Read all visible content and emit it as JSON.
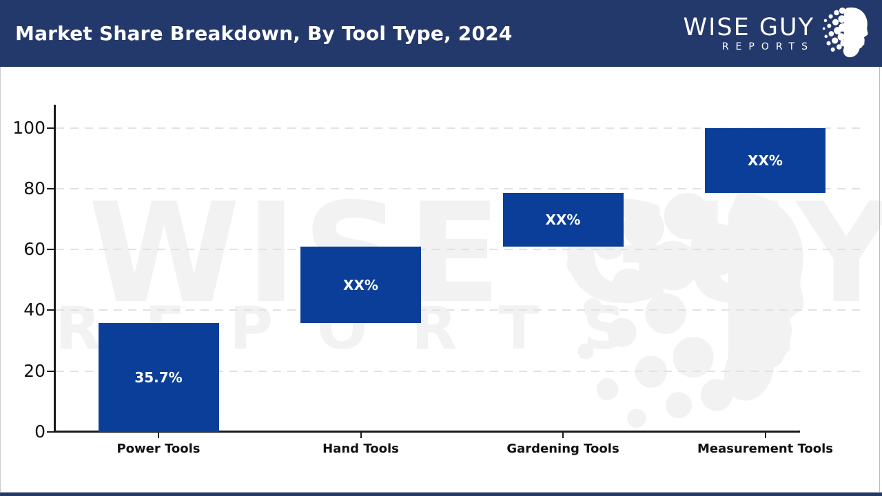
{
  "header": {
    "title": "Market Share Breakdown, By Tool Type, 2024",
    "logo": {
      "line1": "WISE GUY",
      "line2": "REPORTS"
    }
  },
  "watermark": {
    "line1": "WISE GUY",
    "line2": "REPORTS"
  },
  "colors": {
    "header_navy": "#24396b",
    "bar_blue": "#0b3e98",
    "bar_label_white": "#ffffff",
    "grid_gray": "#e2e2e2",
    "watermark_gray": "#f2f2f2"
  },
  "chart_data": {
    "type": "bar",
    "subtype": "waterfall",
    "title": "Market Share Breakdown, By Tool Type, 2024",
    "categories": [
      "Power Tools",
      "Hand Tools",
      "Gardening Tools",
      "Measurement Tools"
    ],
    "segments": [
      {
        "category": "Power Tools",
        "start": 0,
        "end": 35.7,
        "value_label": "35.7%"
      },
      {
        "category": "Hand Tools",
        "start": 35.7,
        "end": 61.0,
        "value_label": "XX%"
      },
      {
        "category": "Gardening Tools",
        "start": 61.0,
        "end": 78.5,
        "value_label": "XX%"
      },
      {
        "category": "Measurement Tools",
        "start": 78.5,
        "end": 100.0,
        "value_label": "XX%"
      }
    ],
    "yticks": [
      0,
      20,
      40,
      60,
      80,
      100
    ],
    "ylim": [
      0,
      107
    ],
    "xlabel": "",
    "ylabel": "",
    "grid": "horizontal-dashed",
    "legend": "none",
    "bar_color": "#0b3e98",
    "value_label_color": "#ffffff"
  }
}
